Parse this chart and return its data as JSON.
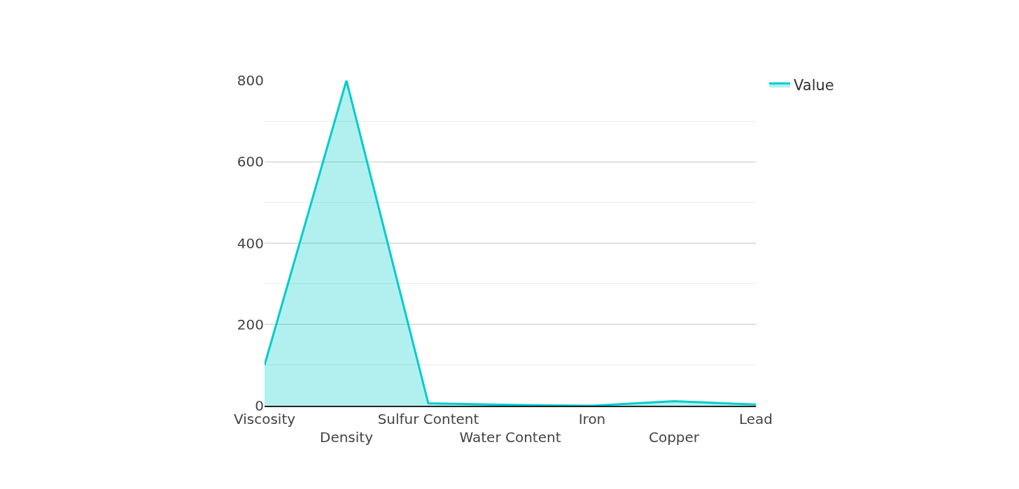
{
  "chart_data": {
    "type": "area",
    "categories": [
      "Viscosity",
      "Density",
      "Sulfur Content",
      "Water Content",
      "Iron",
      "Copper",
      "Lead"
    ],
    "series": [
      {
        "name": "Value",
        "color": "#00cccc",
        "values": [
          100,
          800,
          6,
          2,
          0,
          11,
          3
        ]
      }
    ],
    "ylim": [
      0,
      800
    ],
    "yticks": [
      0,
      200,
      400,
      600,
      800
    ],
    "grid": "y",
    "legend": "top right"
  }
}
